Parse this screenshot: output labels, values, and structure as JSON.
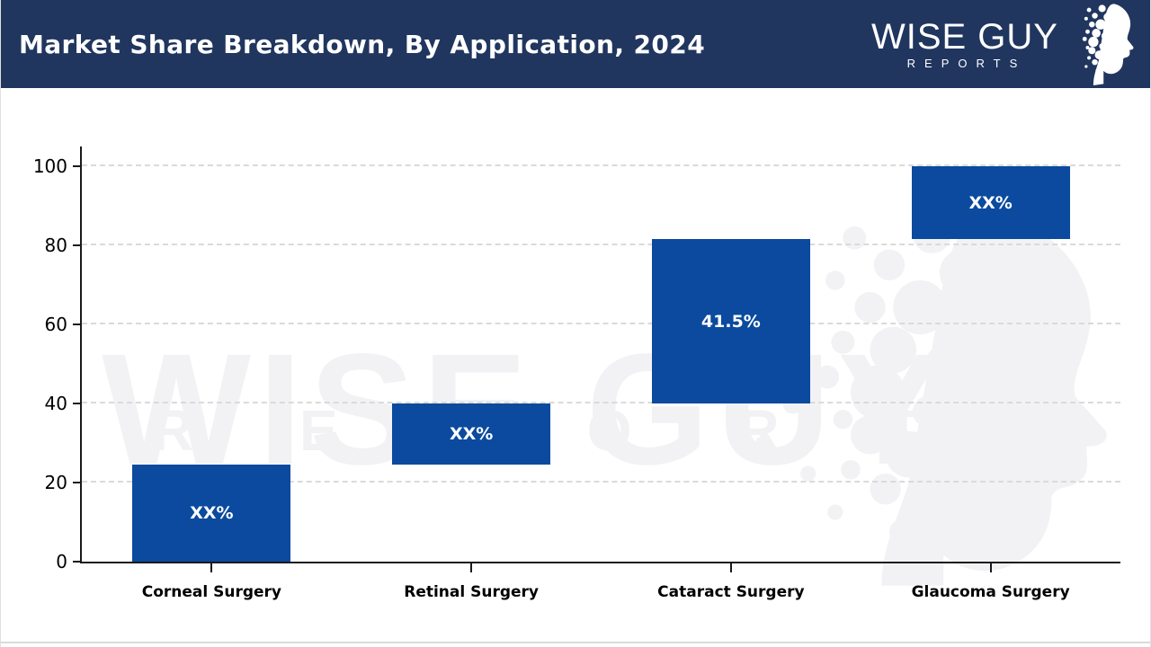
{
  "header": {
    "title": "Market Share Breakdown, By Application, 2024",
    "logo": {
      "brand": "WISE GUY",
      "sub": "REPORTS"
    }
  },
  "watermark": {
    "brand": "WISE GUY",
    "sub": "R E P O R T S"
  },
  "chart_data": {
    "type": "bar",
    "subtype": "floating-waterfall",
    "title": "Market Share Breakdown, By Application, 2024",
    "categories": [
      "Corneal Surgery",
      "Retinal Surgery",
      "Cataract Surgery",
      "Glaucoma Surgery"
    ],
    "segments": [
      {
        "category": "Corneal Surgery",
        "start": 0,
        "end": 24.5,
        "label": "XX%"
      },
      {
        "category": "Retinal Surgery",
        "start": 24.5,
        "end": 40,
        "label": "XX%"
      },
      {
        "category": "Cataract Surgery",
        "start": 40,
        "end": 81.5,
        "label": "41.5%"
      },
      {
        "category": "Glaucoma Surgery",
        "start": 81.5,
        "end": 100,
        "label": "XX%"
      }
    ],
    "yticks": [
      0,
      20,
      40,
      60,
      80,
      100
    ],
    "ylim": [
      0,
      105
    ],
    "xlabel": "",
    "ylabel": "",
    "grid": "horizontal dashed",
    "legend": "none",
    "bar_color": "#0b4a9e",
    "bar_label_color": "#ffffff"
  },
  "colors": {
    "header_bg": "#20365f",
    "bar": "#0b4a9e",
    "grid": "#dadada",
    "axis": "#1a1a1a",
    "watermark": "#f2f2f4",
    "divider": "#dadada"
  }
}
